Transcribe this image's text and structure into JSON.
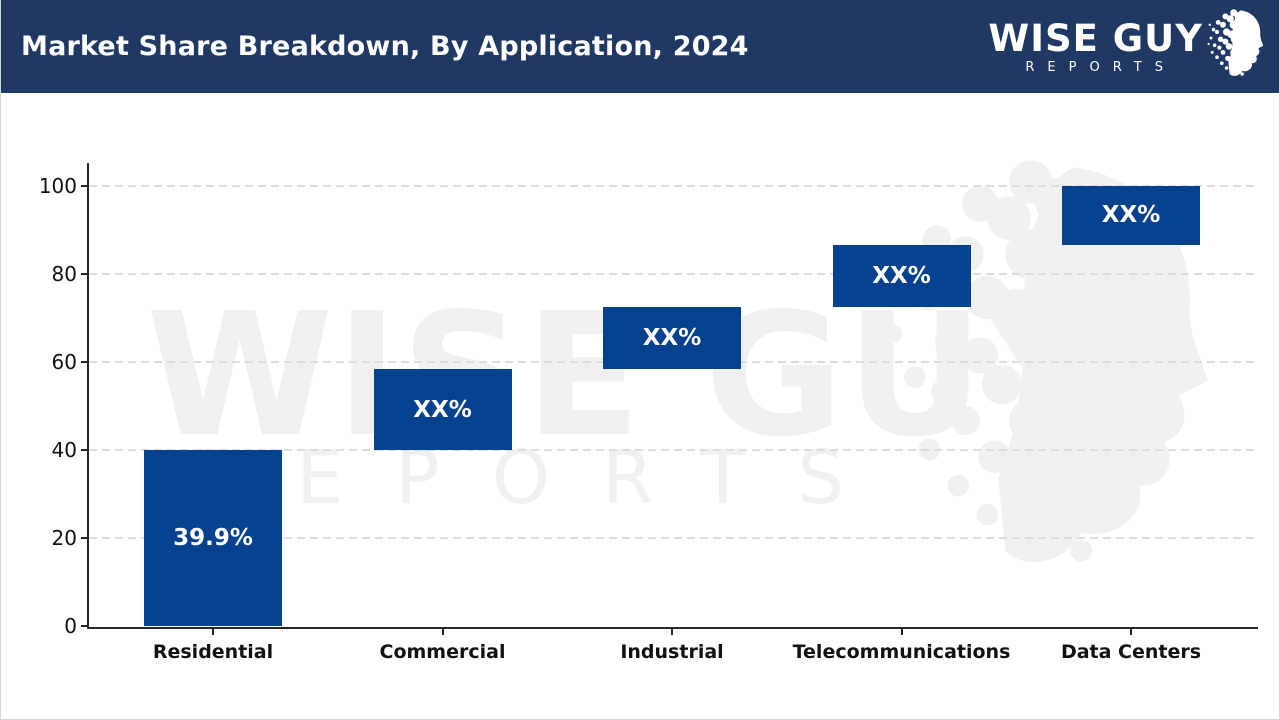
{
  "header": {
    "title": "Market Share Breakdown, By Application, 2024",
    "bg_color": "#1f3864",
    "logo": {
      "wordmark": "WISE GUY",
      "subtext": "REPORTS"
    }
  },
  "watermark": {
    "wordmark": "WISE GUY",
    "subtext": "REPORTS"
  },
  "chart_data": {
    "type": "bar",
    "subtype": "waterfall-cumulative",
    "title": "Market Share Breakdown, By Application, 2024",
    "xlabel": "",
    "ylabel": "",
    "categories": [
      "Residential",
      "Commercial",
      "Industrial",
      "Telecommunications",
      "Data Centers"
    ],
    "bars": [
      {
        "category": "Residential",
        "start": 0,
        "end": 39.9,
        "label": "39.9%"
      },
      {
        "category": "Commercial",
        "start": 39.9,
        "end": 58.5,
        "label": "XX%"
      },
      {
        "category": "Industrial",
        "start": 58.5,
        "end": 72.5,
        "label": "XX%"
      },
      {
        "category": "Telecommunications",
        "start": 72.5,
        "end": 86.6,
        "label": "XX%"
      },
      {
        "category": "Data Centers",
        "start": 86.6,
        "end": 100,
        "label": "XX%"
      }
    ],
    "yticks": [
      0,
      20,
      40,
      60,
      80,
      100
    ],
    "ylim": [
      0,
      105
    ],
    "grid": "horizontal-dashed",
    "legend": null,
    "bar_color": "#04418f",
    "axis_color": "#262626",
    "gridline_color": "#dcdcdc"
  }
}
